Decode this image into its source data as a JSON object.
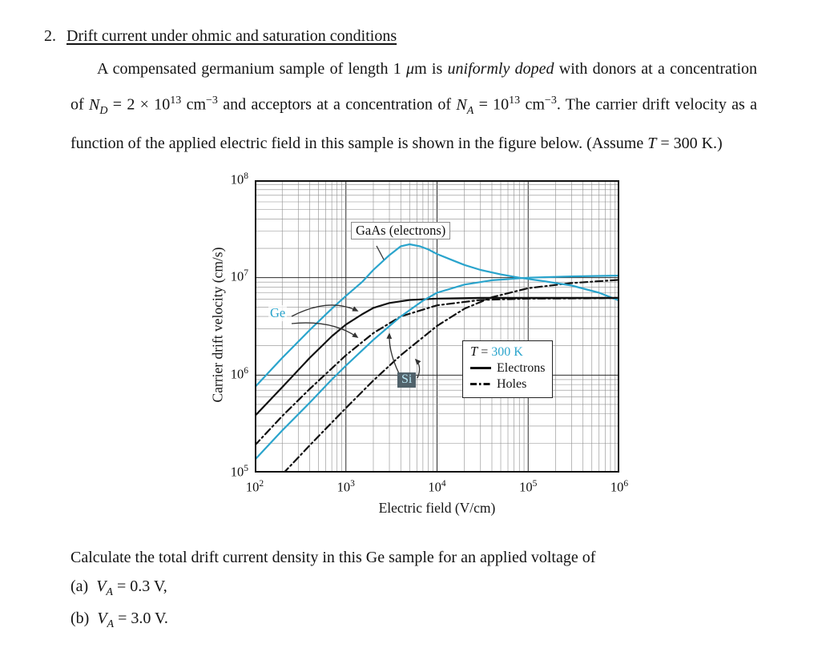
{
  "document": {
    "number": "2.",
    "title": "Drift current under ohmic and saturation conditions",
    "statement_html": "A compensated germanium sample of length 1 <i>μ</i>m is <i>uniformly doped</i> with donors at a concentration of <i>N<sub>D</sub></i> = 2 × 10<sup>13</sup> cm<sup>−3</sup> and acceptors at a concentration of <i>N<sub>A</sub></i> = 10<sup>13</sup> cm<sup>−3</sup>. The carrier drift velocity as a function of the applied electric field in this sample is shown in the figure below. (Assume <i>T</i> = 300 K.)",
    "closing": "Calculate the total drift current density in this Ge sample for an applied voltage of",
    "parts": [
      {
        "html": "(a)&nbsp; <i>V<sub>A</sub></i> = 0.3 V,"
      },
      {
        "html": "(b)&nbsp; <i>V<sub>A</sub></i> = 3.0 V."
      }
    ]
  },
  "chart_data": {
    "type": "line",
    "title": "",
    "xlabel": "Electric field (V/cm)",
    "ylabel": "Carrier drift velocity (cm/s)",
    "xscale": "log",
    "yscale": "log",
    "xlim": [
      100,
      1000000
    ],
    "ylim": [
      100000,
      100000000
    ],
    "x_tick_exponents": [
      2,
      3,
      4,
      5,
      6
    ],
    "y_tick_exponents": [
      5,
      6,
      7,
      8
    ],
    "grid": true,
    "colors": {
      "accent": "#2aa4cc",
      "line": "#111111"
    },
    "series": [
      {
        "name": "GaAs electrons",
        "color": "#2aa4cc",
        "dash": "solid",
        "points": [
          [
            100,
            750000
          ],
          [
            200,
            1500000
          ],
          [
            400,
            2900000
          ],
          [
            700,
            4800000
          ],
          [
            1000,
            6500000
          ],
          [
            1500,
            9000000
          ],
          [
            2000,
            12000000
          ],
          [
            3000,
            17000000
          ],
          [
            4000,
            21000000
          ],
          [
            5000,
            22000000
          ],
          [
            6500,
            21000000
          ],
          [
            8000,
            19500000
          ],
          [
            10000,
            17500000
          ],
          [
            15000,
            15000000
          ],
          [
            20000,
            13500000
          ],
          [
            30000,
            12000000
          ],
          [
            50000,
            10800000
          ],
          [
            80000,
            10000000
          ],
          [
            150000,
            9200000
          ],
          [
            300000,
            8300000
          ],
          [
            600000,
            7000000
          ],
          [
            1000000,
            5800000
          ]
        ]
      },
      {
        "name": "Ge electrons",
        "color": "#111111",
        "dash": "solid",
        "points": [
          [
            100,
            380000
          ],
          [
            200,
            750000
          ],
          [
            400,
            1500000
          ],
          [
            700,
            2500000
          ],
          [
            1000,
            3300000
          ],
          [
            1500,
            4200000
          ],
          [
            2000,
            4900000
          ],
          [
            3000,
            5500000
          ],
          [
            5000,
            5900000
          ],
          [
            10000,
            6100000
          ],
          [
            30000,
            6200000
          ],
          [
            100000,
            6200000
          ],
          [
            1000000,
            6200000
          ]
        ]
      },
      {
        "name": "Si electrons",
        "color": "#2aa4cc",
        "dash": "solid",
        "points": [
          [
            100,
            135000
          ],
          [
            200,
            270000
          ],
          [
            400,
            520000
          ],
          [
            700,
            900000
          ],
          [
            1000,
            1250000
          ],
          [
            2000,
            2300000
          ],
          [
            4000,
            4000000
          ],
          [
            7000,
            5800000
          ],
          [
            10000,
            7000000
          ],
          [
            20000,
            8500000
          ],
          [
            40000,
            9400000
          ],
          [
            100000,
            10000000
          ],
          [
            300000,
            10300000
          ],
          [
            1000000,
            10500000
          ]
        ]
      },
      {
        "name": "Ge holes",
        "color": "#111111",
        "dash": "dashed",
        "points": [
          [
            100,
            190000
          ],
          [
            200,
            380000
          ],
          [
            400,
            720000
          ],
          [
            1000,
            1600000
          ],
          [
            2000,
            2700000
          ],
          [
            4000,
            4000000
          ],
          [
            10000,
            5200000
          ],
          [
            30000,
            5900000
          ],
          [
            100000,
            6100000
          ],
          [
            1000000,
            6200000
          ]
        ]
      },
      {
        "name": "Si holes",
        "color": "#111111",
        "dash": "dashed",
        "points": [
          [
            205,
            98000
          ],
          [
            400,
            190000
          ],
          [
            1000,
            460000
          ],
          [
            2000,
            880000
          ],
          [
            4000,
            1600000
          ],
          [
            10000,
            3200000
          ],
          [
            20000,
            4800000
          ],
          [
            40000,
            6300000
          ],
          [
            100000,
            7800000
          ],
          [
            300000,
            8800000
          ],
          [
            1000000,
            9500000
          ]
        ]
      }
    ],
    "annotations": [
      {
        "id": "gaas",
        "text": "GaAs (electrons)"
      },
      {
        "id": "ge",
        "text": "Ge"
      },
      {
        "id": "si",
        "text": "Si"
      }
    ],
    "legend": {
      "title_var": "T",
      "title_eq": " = ",
      "title_value": "300 K",
      "position": "right-middle",
      "entries": [
        {
          "style": "solid",
          "label": "Electrons"
        },
        {
          "style": "dashed",
          "label": "Holes"
        }
      ]
    }
  }
}
